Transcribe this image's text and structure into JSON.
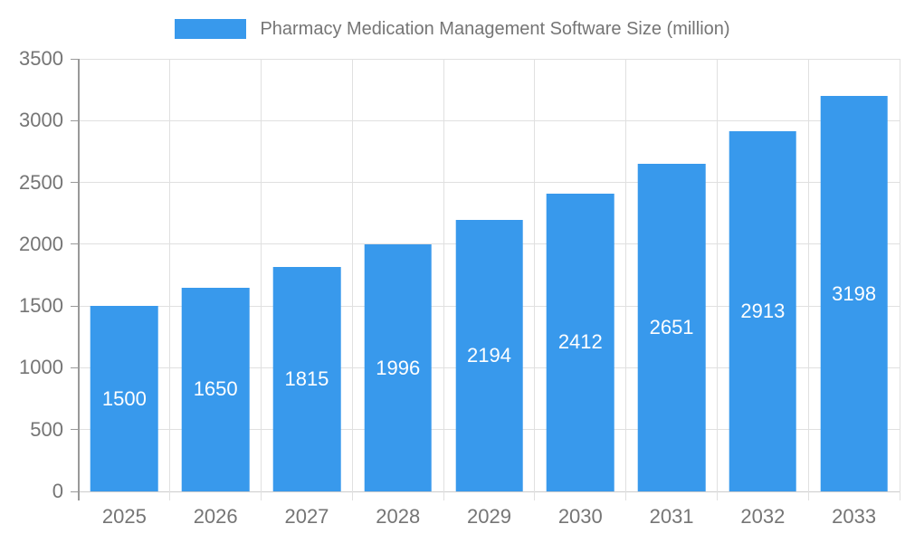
{
  "chart_data": {
    "type": "bar",
    "title": "Pharmacy Medication Management Software Size (million)",
    "legend": {
      "position": "top-center",
      "label": "Pharmacy Medication Management Software Size (million)"
    },
    "categories": [
      "2025",
      "2026",
      "2027",
      "2028",
      "2029",
      "2030",
      "2031",
      "2032",
      "2033"
    ],
    "values": [
      1500,
      1650,
      1815,
      1996,
      2194,
      2412,
      2651,
      2913,
      3198
    ],
    "value_labels": [
      "1500",
      "1650",
      "1815",
      "1996",
      "2194",
      "2412",
      "2651",
      "2913",
      "3198"
    ],
    "xlabel": "",
    "ylabel": "",
    "ylim": [
      0,
      3500
    ],
    "ytick_step": 500,
    "ytick_labels": [
      "0",
      "500",
      "1000",
      "1500",
      "2000",
      "2500",
      "3000",
      "3500"
    ],
    "grid": true,
    "colors": {
      "bar": "#3899EC",
      "bar_label": "#ffffff",
      "axis": "#999999",
      "gridline": "#e0e0e0",
      "zero_line": "#cccccc",
      "text": "#757575",
      "background": "#ffffff"
    }
  }
}
